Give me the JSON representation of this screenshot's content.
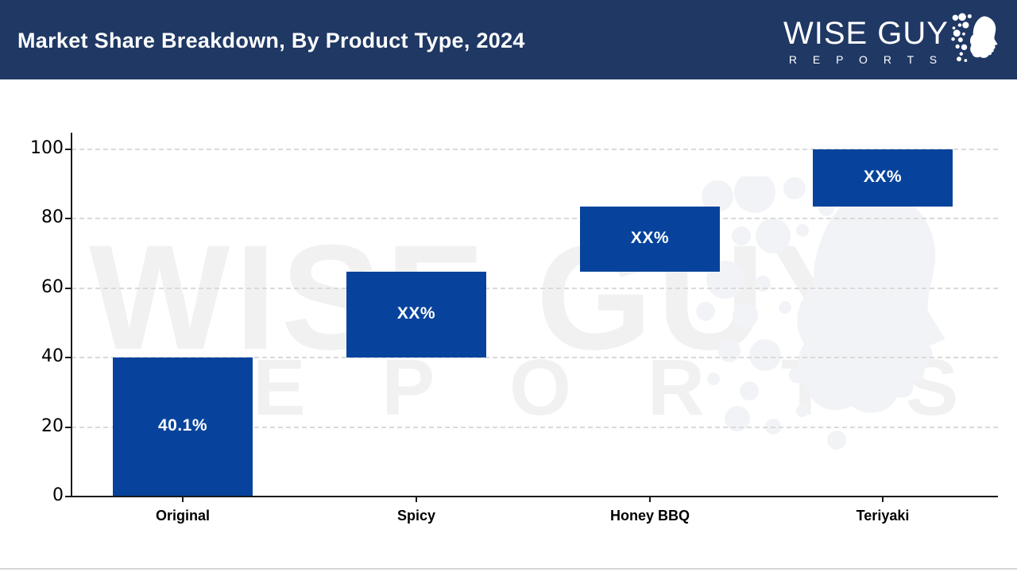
{
  "header": {
    "title": "Market Share Breakdown, By Product Type, 2024",
    "logo": {
      "line1": "WISE GUY",
      "line2": "R E P O R T S"
    }
  },
  "watermark": {
    "line1": "WISE GUY",
    "line2": "R E P O R T S"
  },
  "chart_data": {
    "type": "bar",
    "variant": "waterfall",
    "title": "Market Share Breakdown, By Product Type, 2024",
    "categories": [
      "Original",
      "Spicy",
      "Honey BBQ",
      "Teriyaki"
    ],
    "segments": [
      {
        "category": "Original",
        "start": 0,
        "end": 40.1,
        "label": "40.1%"
      },
      {
        "category": "Spicy",
        "start": 40.1,
        "end": 64.7,
        "label": "XX%"
      },
      {
        "category": "Honey BBQ",
        "start": 64.7,
        "end": 83.5,
        "label": "XX%"
      },
      {
        "category": "Teriyaki",
        "start": 83.5,
        "end": 100,
        "label": "XX%"
      }
    ],
    "yticks": [
      0,
      20,
      40,
      60,
      80,
      100
    ],
    "ylim": [
      0,
      105
    ],
    "xlabel": "",
    "ylabel": "",
    "grid": "horizontal-dashed",
    "legend": "none",
    "bar_color": "#07439c",
    "bar_label_color": "#ffffff",
    "header_color": "#1f3864"
  }
}
